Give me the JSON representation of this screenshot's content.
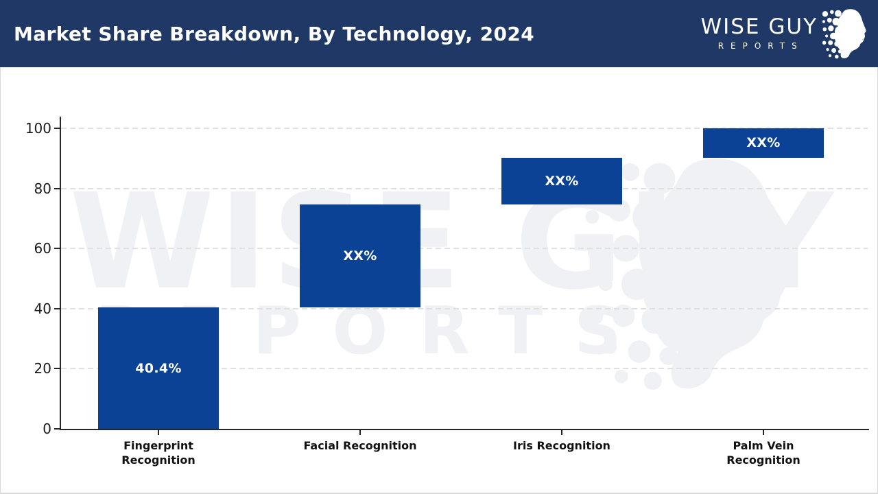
{
  "header": {
    "title": "Market Share Breakdown, By Technology, 2024",
    "brand": {
      "line1": "WISE GUY",
      "line2": "REPORTS"
    }
  },
  "watermark": {
    "line1": "WISE GUY",
    "line2": "REPORTS"
  },
  "chart_data": {
    "type": "bar",
    "subtype": "floating-waterfall",
    "title": "Market Share Breakdown, By Technology, 2024",
    "categories": [
      {
        "lines": [
          "Fingerprint",
          "Recognition"
        ]
      },
      {
        "lines": [
          "Facial Recognition"
        ]
      },
      {
        "lines": [
          "Iris Recognition"
        ]
      },
      {
        "lines": [
          "Palm Vein",
          "Recognition"
        ]
      }
    ],
    "segments": [
      {
        "category": "Fingerprint Recognition",
        "start": 0,
        "end": 40.4,
        "label": "40.4%"
      },
      {
        "category": "Facial Recognition",
        "start": 40.4,
        "end": 74.7,
        "label": "XX%"
      },
      {
        "category": "Iris Recognition",
        "start": 74.7,
        "end": 90.2,
        "label": "XX%"
      },
      {
        "category": "Palm Vein Recognition",
        "start": 90.2,
        "end": 100,
        "label": "XX%"
      }
    ],
    "ylim": [
      0,
      100
    ],
    "yticks": [
      0,
      20,
      40,
      60,
      80,
      100
    ],
    "grid": "horizontal-dashed",
    "legend": "none",
    "bar_color": "#0B4296",
    "bar_label_color": "#FFFFFF"
  },
  "colors": {
    "header_bg": "#203866",
    "bar": "#0B4296",
    "grid": "#E0E0E0",
    "axis": "#262626",
    "watermark": "#F0F1F4",
    "card_border": "#D9D9D9"
  }
}
